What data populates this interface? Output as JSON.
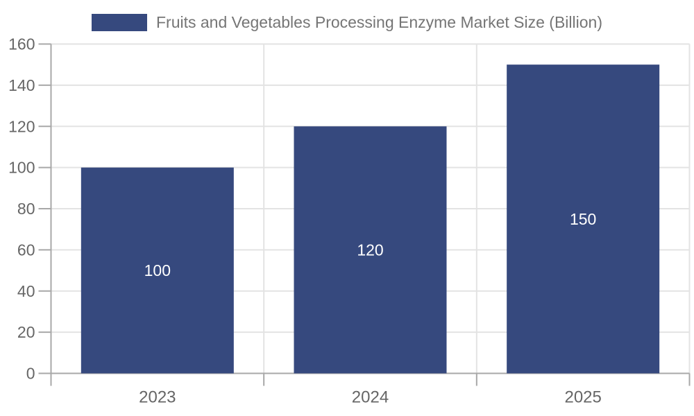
{
  "chart_data": {
    "type": "bar",
    "title": "",
    "legend": {
      "label": "Fruits and Vegetables Processing Enzyme Market Size (Billion)",
      "position": "top"
    },
    "categories": [
      "2023",
      "2024",
      "2025"
    ],
    "series": [
      {
        "name": "Fruits and Vegetables Processing Enzyme Market Size (Billion)",
        "values": [
          100,
          120,
          150
        ],
        "bar_labels": [
          "100",
          "120",
          "150"
        ]
      }
    ],
    "xlabel": "",
    "ylabel": "",
    "ylim": [
      0,
      160
    ],
    "yticks": [
      0,
      20,
      40,
      60,
      80,
      100,
      120,
      140,
      160
    ],
    "grid": true,
    "colors": {
      "bar": "#36497E",
      "bar_label": "#FFFFFF",
      "axis_line": "#A8A8A8",
      "grid_line": "#E3E3E3",
      "tick_label": "#666666",
      "legend_text": "#757575",
      "background": "#FFFFFF"
    }
  }
}
